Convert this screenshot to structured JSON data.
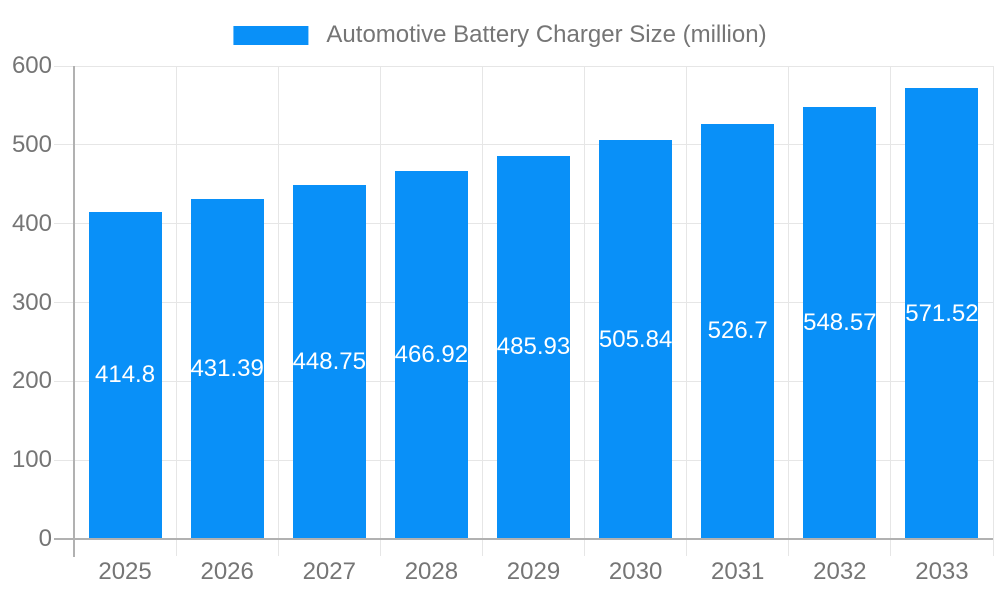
{
  "legend": {
    "label": "Automotive Battery Charger Size (million)",
    "swatch_color": "#0990f8"
  },
  "chart_data": {
    "type": "bar",
    "title": "Automotive Battery Charger Size (million)",
    "categories": [
      "2025",
      "2026",
      "2027",
      "2028",
      "2029",
      "2030",
      "2031",
      "2032",
      "2033"
    ],
    "values": [
      414.8,
      431.39,
      448.75,
      466.92,
      485.93,
      505.84,
      526.7,
      548.57,
      571.52
    ],
    "value_labels": [
      "414.8",
      "431.39",
      "448.75",
      "466.92",
      "485.93",
      "505.84",
      "526.7",
      "548.57",
      "571.52"
    ],
    "ylabel": "",
    "xlabel": "",
    "ylim": [
      0,
      600
    ],
    "yticks": [
      0,
      100,
      200,
      300,
      400,
      500,
      600
    ],
    "grid": true,
    "legend_position": "top",
    "colors": {
      "bar": "#0990f8",
      "value_label": "#ffffff",
      "axis_text": "#757575",
      "gridline": "#e6e6e6",
      "axis_line": "#b1b1b1"
    }
  }
}
